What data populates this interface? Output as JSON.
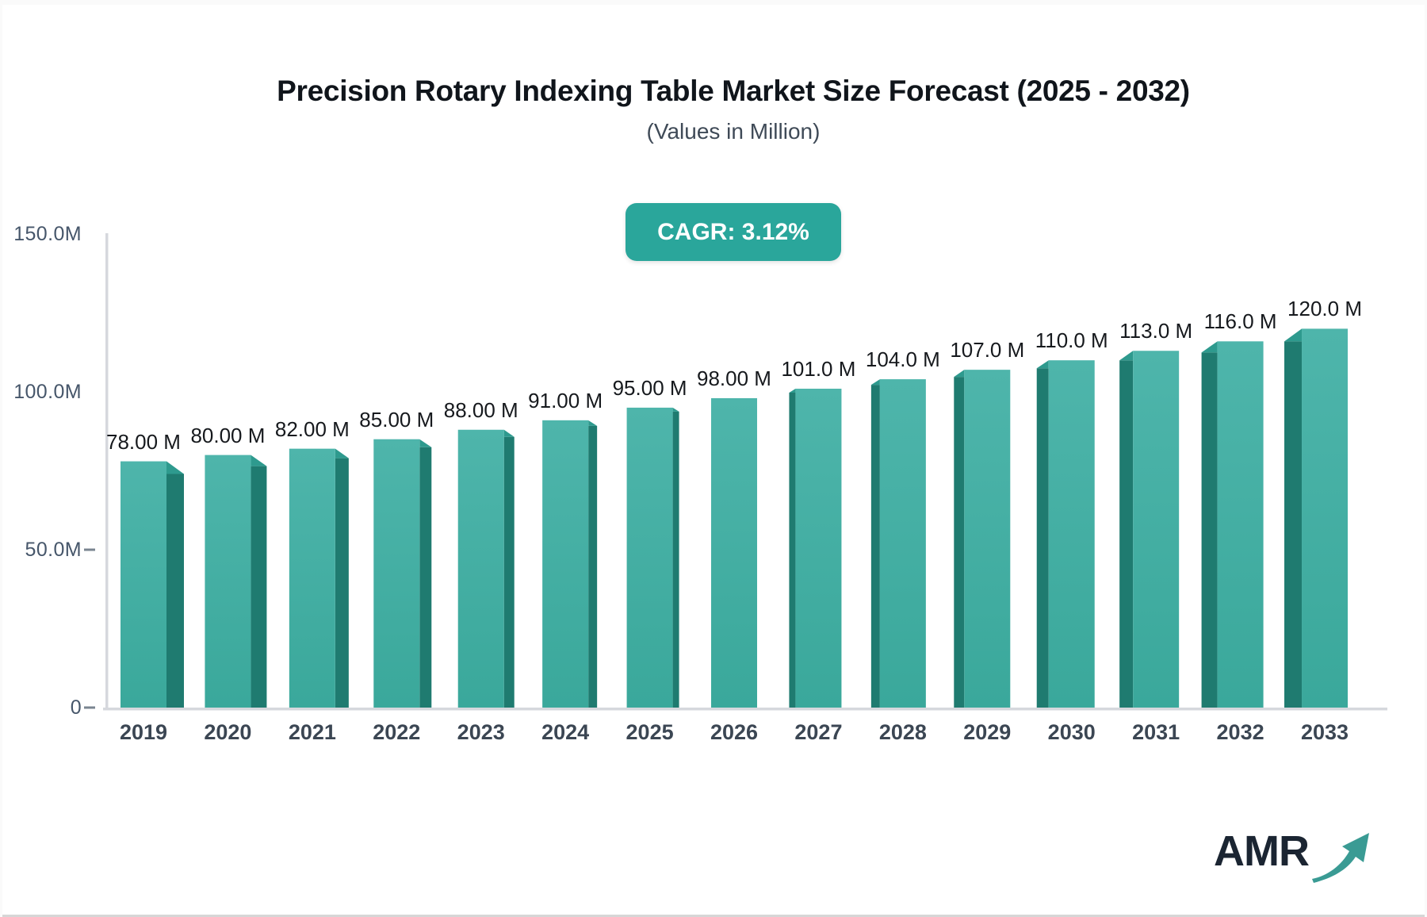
{
  "header": {
    "title": "Precision Rotary Indexing Table Market Size Forecast (2025 - 2032)",
    "subtitle": "(Values in Million)"
  },
  "badge": {
    "label": "CAGR: 3.12%",
    "bg": "#2aa69b",
    "text_color": "#ffffff"
  },
  "chart_data": {
    "type": "bar",
    "title": "Precision Rotary Indexing Table Market Size Forecast (2025 - 2032)",
    "subtitle": "(Values in Million)",
    "categories": [
      "2019",
      "2020",
      "2021",
      "2022",
      "2023",
      "2024",
      "2025",
      "2026",
      "2027",
      "2028",
      "2029",
      "2030",
      "2031",
      "2032",
      "2033"
    ],
    "values": [
      78,
      80,
      82,
      85,
      88,
      91,
      95,
      98,
      101,
      104,
      107,
      110,
      113,
      116,
      120
    ],
    "value_labels": [
      "78.00 M",
      "80.00 M",
      "82.00 M",
      "85.00 M",
      "88.00 M",
      "91.00 M",
      "95.00 M",
      "98.00 M",
      "101.0 M",
      "104.0 M",
      "107.0 M",
      "110.0 M",
      "113.0 M",
      "116.0 M",
      "120.0 M"
    ],
    "y_ticks": [
      {
        "label": "150.0M",
        "value": 150,
        "dash": false
      },
      {
        "label": "100.0M",
        "value": 100,
        "dash": false
      },
      {
        "label": "50.0M",
        "value": 50,
        "dash": true
      },
      {
        "label": "0",
        "value": 0,
        "dash": true
      }
    ],
    "ylim": [
      0,
      150
    ],
    "grid": false,
    "legend": "none",
    "bar_front_color_top": "#4eb5ab",
    "bar_front_color_bottom": "#3aa89b",
    "bar_side_color": "#1f7b70",
    "bar_bevel_color": "#2e9a8e",
    "axis_color": "#d6d8dd",
    "tick_color": "#7a8590"
  },
  "logo": {
    "text": "AMR",
    "color": "#1b2532",
    "arrow_color": "#3a9b94"
  }
}
